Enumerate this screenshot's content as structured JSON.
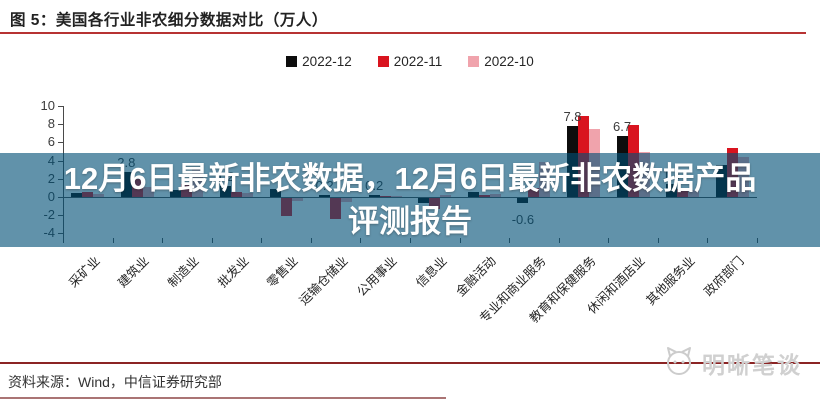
{
  "figure": {
    "title": "图 5：美国各行业非农细分数据对比（万人）",
    "source": "资料来源：Wind，中信证券研究部",
    "watermark": "明晰笔谈"
  },
  "overlay": {
    "text": "12月6日最新非农数据，12月6日最新非农数据产品评测报告"
  },
  "chart_data": {
    "type": "bar",
    "title": "美国各行业非农细分数据对比（万人）",
    "xlabel": "",
    "ylabel": "万人",
    "ylim": [
      -4,
      10
    ],
    "yticks": [
      10,
      8,
      6,
      4,
      2,
      0,
      -2,
      -4
    ],
    "grid": false,
    "legend_position": "top-center",
    "categories": [
      "采矿业",
      "建筑业",
      "制造业",
      "批发业",
      "零售业",
      "运输仓储业",
      "公用事业",
      "信息业",
      "金融活动",
      "专业和商业服务",
      "教育和保健服务",
      "休闲和酒店业",
      "其他服务业",
      "政府部门"
    ],
    "series": [
      {
        "name": "2022-12",
        "color": "#0d0d0d",
        "values": [
          0.4,
          2.8,
          0.8,
          1.2,
          0.9,
          0.2,
          0.2,
          -0.5,
          0.5,
          -0.6,
          7.8,
          6.7,
          1.4,
          3.5
        ]
      },
      {
        "name": "2022-11",
        "color": "#d9141f",
        "values": [
          0.6,
          2.0,
          1.4,
          0.5,
          -2.0,
          -2.3,
          0.1,
          -1.2,
          0.2,
          1.0,
          8.9,
          7.9,
          0.9,
          5.4
        ]
      },
      {
        "name": "2022-10",
        "color": "#f0a3ac",
        "values": [
          0.3,
          1.1,
          3.2,
          0.4,
          -0.3,
          -0.4,
          0.1,
          0.2,
          0.3,
          3.9,
          7.5,
          4.9,
          0.8,
          4.4
        ]
      }
    ],
    "data_labels": {
      "on_series": "2022-12",
      "by_category_index": {
        "1": "2.8",
        "3": "1.2",
        "5": "0.2",
        "6": "0.2",
        "9": "-0.6",
        "10": "7.8",
        "11": "6.7",
        "12": "1.4"
      }
    }
  },
  "colors": {
    "title_rule_red": "#b73333",
    "separator_maroon": "#8b2424",
    "bottom_rule_maroon": "#7d2a2a",
    "banner_overlay": "rgba(0,79,118,0.62)",
    "banner_text": "#ffffff",
    "axis_text": "#3c3c3c",
    "watermark_gray": "#d0d0d0"
  }
}
